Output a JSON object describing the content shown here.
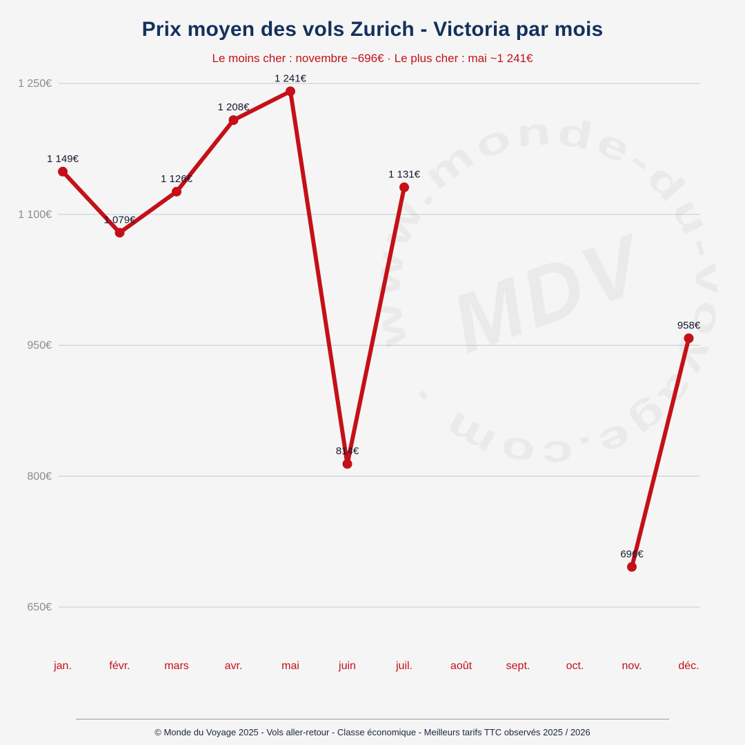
{
  "title": "Prix moyen des vols Zurich - Victoria par mois",
  "subtitle": "Le moins cher : novembre ~696€ · Le plus cher : mai ~1 241€",
  "footer": "© Monde du Voyage 2025 - Vols aller-retour - Classe économique - Meilleurs tarifs TTC observés 2025 / 2026",
  "watermark": {
    "circle_text": "www.monde-du-voyage.com ·",
    "center_text": "MDV"
  },
  "colors": {
    "background": "#f5f5f5",
    "line": "#c41018",
    "title": "#14315c",
    "subtitle": "#c41018",
    "grid": "#c3c9d8",
    "y_axis_label": "#8c8c8c",
    "month_label": "#c41018",
    "point_label": "#14182e"
  },
  "chart_data": {
    "type": "line",
    "title": "Prix moyen des vols Zurich - Victoria par mois",
    "xlabel": "",
    "ylabel": "",
    "categories": [
      "jan.",
      "févr.",
      "mars",
      "avr.",
      "mai",
      "juin",
      "juil.",
      "août",
      "sept.",
      "oct.",
      "nov.",
      "déc."
    ],
    "values": [
      1149,
      1079,
      1126,
      1208,
      1241,
      814,
      1131,
      null,
      null,
      null,
      696,
      958
    ],
    "labels": [
      "1 149€",
      "1 079€",
      "1 126€",
      "1 208€",
      "1 241€",
      "814€",
      "1 131€",
      null,
      null,
      null,
      "696€",
      "958€"
    ],
    "ytick_values": [
      1250,
      1100,
      950,
      800,
      650
    ],
    "ylabel_ticks": [
      "1 250€",
      "1 100€",
      "950€",
      "800€",
      "650€"
    ],
    "ylim": [
      650,
      1250
    ],
    "grid": true,
    "legend_position": "none",
    "min_note": {
      "month": "novembre",
      "value": 696
    },
    "max_note": {
      "month": "mai",
      "value": 1241
    }
  }
}
